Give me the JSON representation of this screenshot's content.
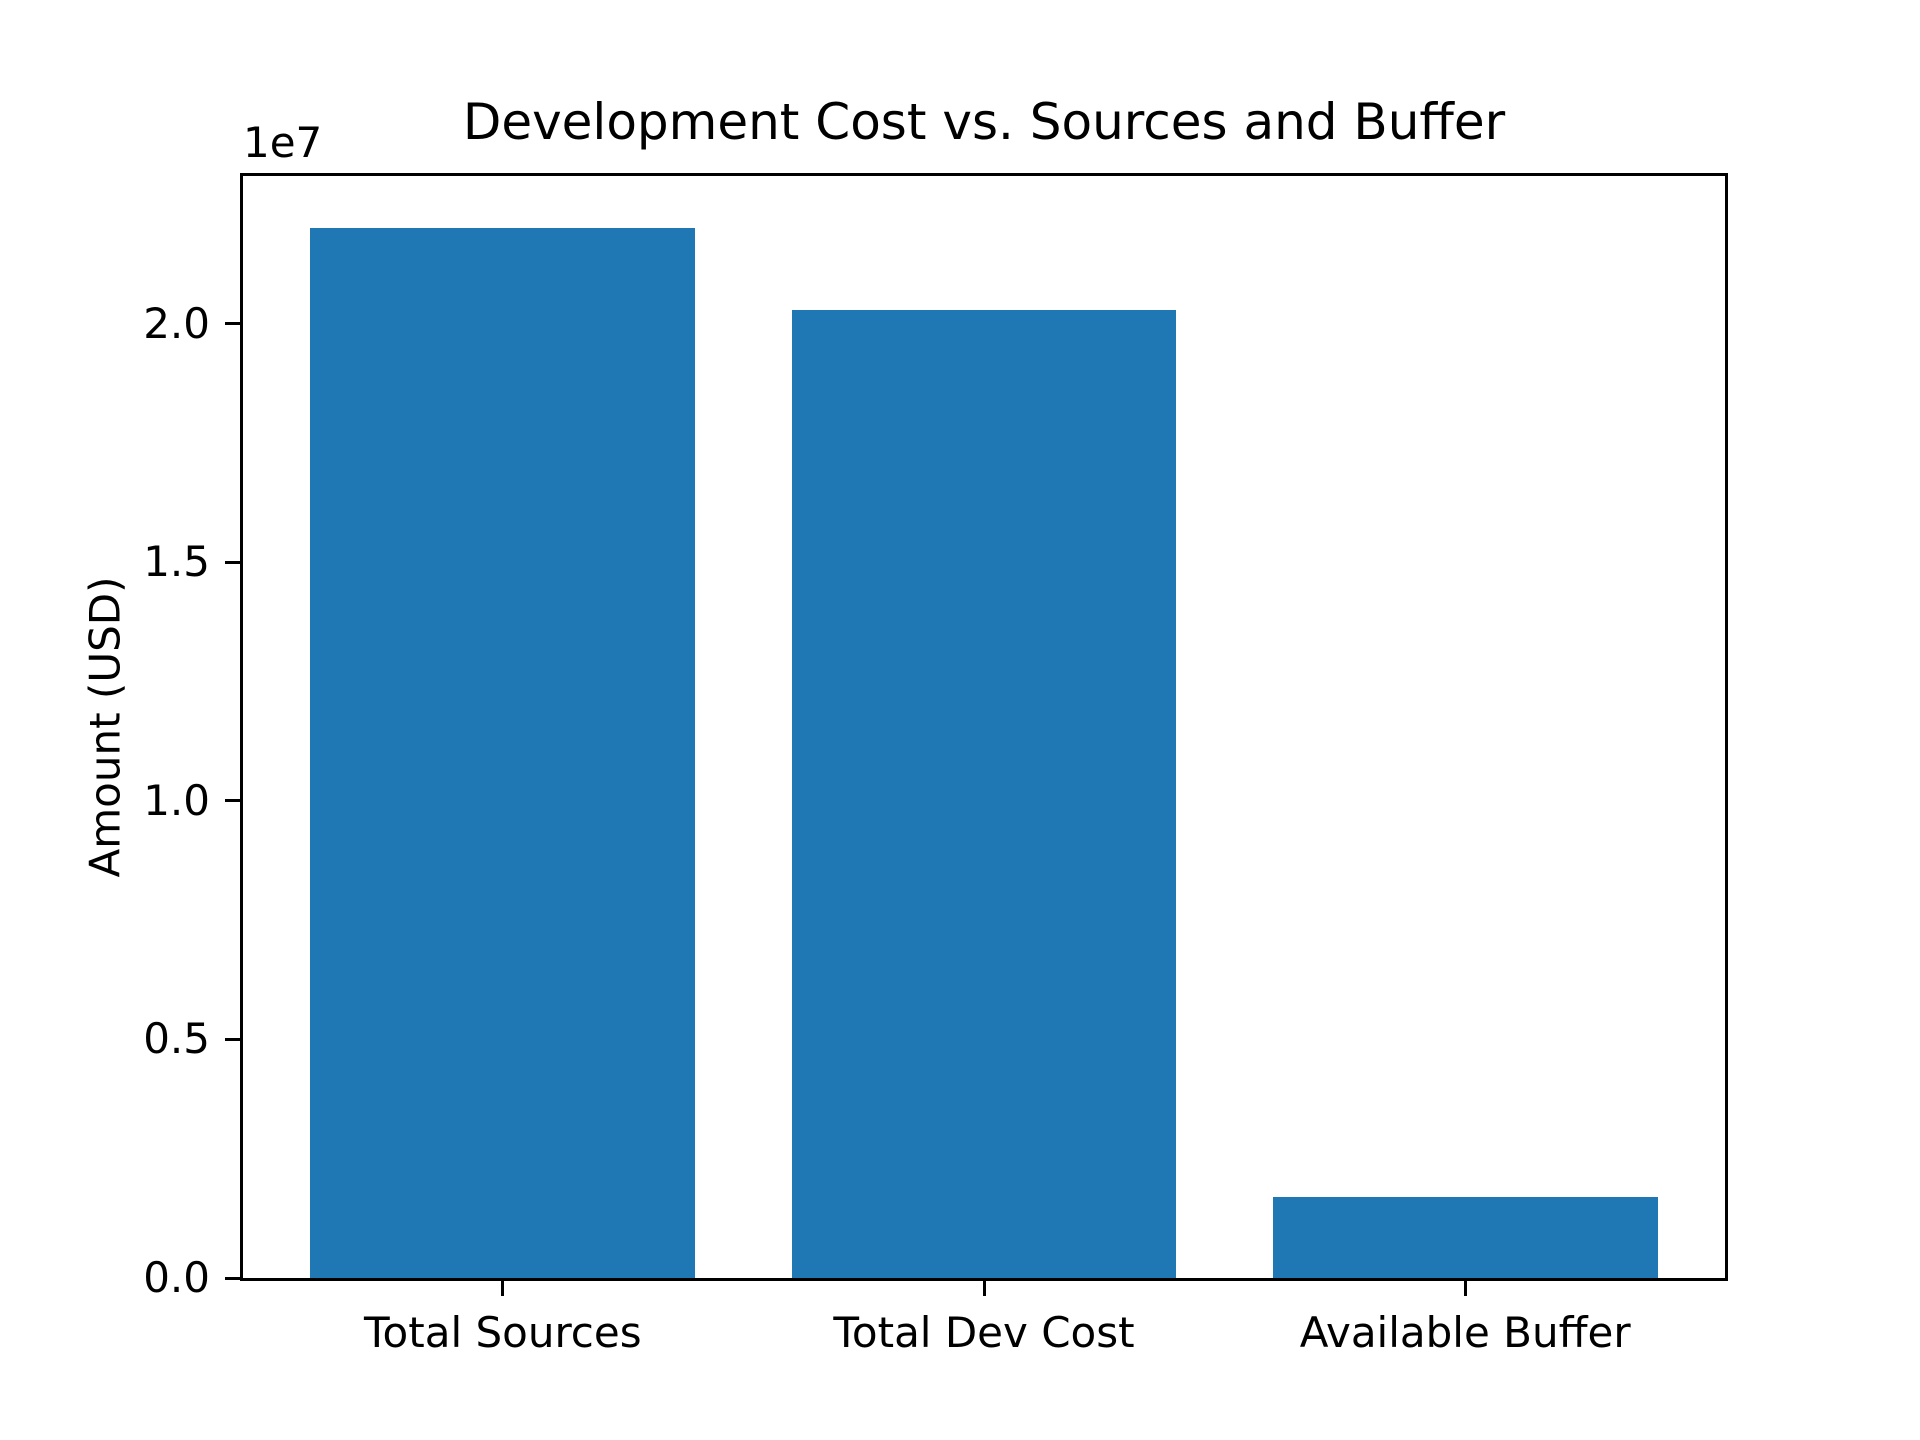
{
  "chart_data": {
    "type": "bar",
    "title": "Development Cost vs. Sources and Buffer",
    "xlabel": "",
    "ylabel": "Amount (USD)",
    "y_offset_text": "1e7",
    "categories": [
      "Total Sources",
      "Total Dev Cost",
      "Available Buffer"
    ],
    "values": [
      22000000,
      20300000,
      1700000
    ],
    "ylim": [
      0,
      23100000
    ],
    "yticks": [
      0,
      5000000,
      10000000,
      15000000,
      20000000
    ],
    "ytick_labels": [
      "0.0",
      "0.5",
      "1.0",
      "1.5",
      "2.0"
    ],
    "bar_color": "#1f77b4",
    "axis_color": "#000000",
    "grid": false,
    "legend_position": "none"
  }
}
